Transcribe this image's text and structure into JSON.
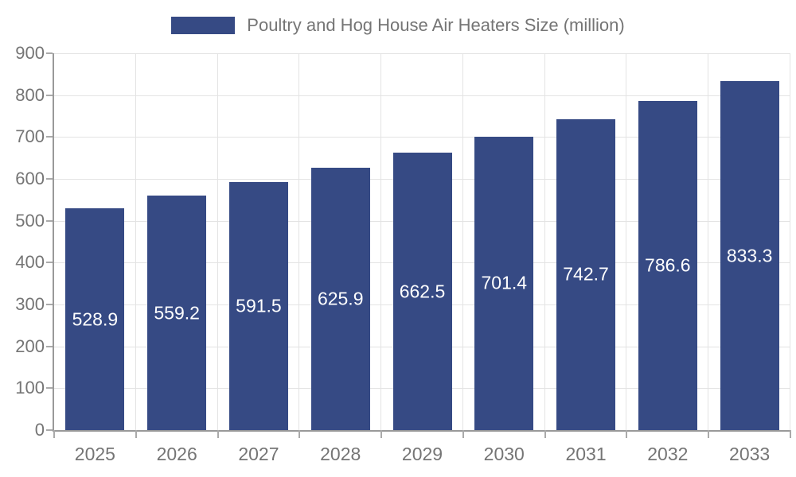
{
  "chart_data": {
    "type": "bar",
    "title": "",
    "series_name": "Poultry and Hog House Air Heaters Size (million)",
    "categories": [
      "2025",
      "2026",
      "2027",
      "2028",
      "2029",
      "2030",
      "2031",
      "2032",
      "2033"
    ],
    "values": [
      528.9,
      559.2,
      591.5,
      625.9,
      662.5,
      701.4,
      742.7,
      786.6,
      833.3
    ],
    "value_labels": [
      "528.9",
      "559.2",
      "591.5",
      "625.9",
      "662.5",
      "701.4",
      "742.7",
      "786.6",
      "833.3"
    ],
    "xlabel": "",
    "ylabel": "",
    "ylim": [
      0,
      900
    ],
    "ytick_interval": 100,
    "ytick_labels": [
      "0",
      "100",
      "200",
      "300",
      "400",
      "500",
      "600",
      "700",
      "800",
      "900"
    ],
    "grid": true,
    "legend_position": "top",
    "bar_color": "#364a84",
    "bar_label_color": "#ffffff",
    "axis_text_color": "#757575",
    "gridline_color": "#e3e3e3",
    "axis_line_color": "#999999",
    "tick_color": "#aaaaaa",
    "background_color": "#ffffff"
  }
}
